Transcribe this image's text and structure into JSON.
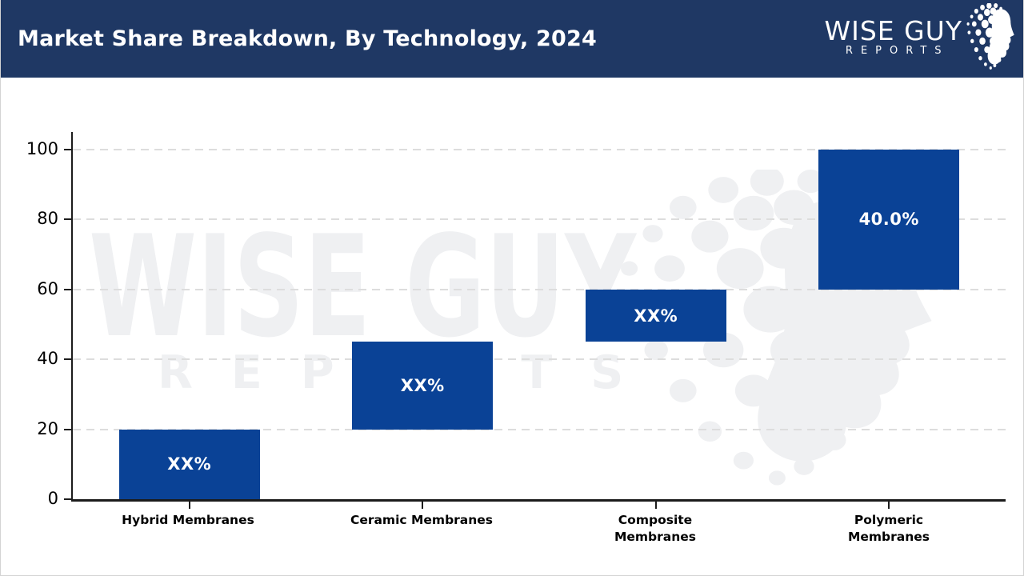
{
  "header": {
    "bg_color": "#1f3864",
    "title": "Market Share Breakdown, By Technology, 2024",
    "logo": {
      "line1": "WISE GUY",
      "line2": "REPORTS"
    }
  },
  "watermark": {
    "line1": "WISE GUY",
    "line2": "REPORTS"
  },
  "chart_data": {
    "type": "bar",
    "subtype": "waterfall-stacked-segments",
    "title": "Market Share Breakdown, By Technology, 2024",
    "categories": [
      "Hybrid Membranes",
      "Ceramic Membranes",
      "Composite Membranes",
      "Polymeric Membranes"
    ],
    "bars": [
      {
        "category": "Hybrid Membranes",
        "label_lines": [
          "Hybrid Membranes"
        ],
        "start": 0,
        "end": 20,
        "value_label": "XX%"
      },
      {
        "category": "Ceramic Membranes",
        "label_lines": [
          "Ceramic Membranes"
        ],
        "start": 20,
        "end": 45,
        "value_label": "XX%"
      },
      {
        "category": "Composite Membranes",
        "label_lines": [
          "Composite",
          "Membranes"
        ],
        "start": 45,
        "end": 60,
        "value_label": "XX%"
      },
      {
        "category": "Polymeric Membranes",
        "label_lines": [
          "Polymeric",
          "Membranes"
        ],
        "start": 60,
        "end": 100,
        "value_label": "40.0%"
      }
    ],
    "yticks": [
      0,
      20,
      40,
      60,
      80,
      100
    ],
    "ylim": [
      0,
      105
    ],
    "xlabel": "",
    "ylabel": "",
    "legend": "none",
    "grid": {
      "axis": "y",
      "style": "dashed",
      "color": "#dddddd"
    },
    "bar_color": "#0a4296",
    "bar_label_color": "#ffffff"
  }
}
